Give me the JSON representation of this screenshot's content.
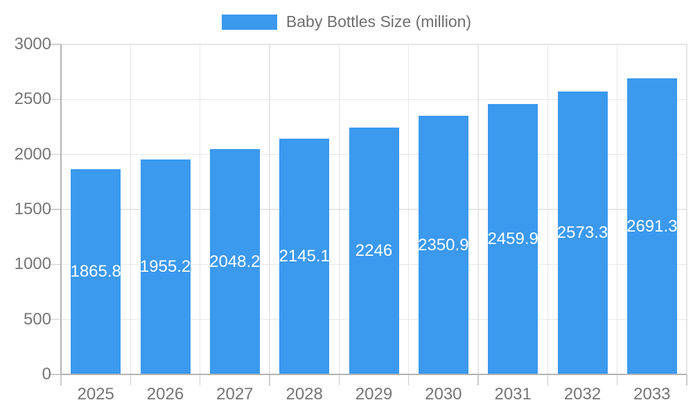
{
  "legend": {
    "label": "Baby Bottles Size (million)"
  },
  "chart_data": {
    "type": "bar",
    "title": "",
    "legend_label": "Baby Bottles Size (million)",
    "legend_position": "top",
    "categories": [
      "2025",
      "2026",
      "2027",
      "2028",
      "2029",
      "2030",
      "2031",
      "2032",
      "2033"
    ],
    "series": [
      {
        "name": "Baby Bottles Size (million)",
        "values": [
          1865.8,
          1955.2,
          2048.2,
          2145.1,
          2246,
          2350.9,
          2459.9,
          2573.3,
          2691.3
        ]
      }
    ],
    "xlabel": "",
    "ylabel": "",
    "ylim": [
      0,
      3000
    ],
    "y_ticks": [
      0,
      500,
      1000,
      1500,
      2000,
      2500,
      3000
    ],
    "grid": true,
    "colors": {
      "bar": "#3B99EE",
      "axis_text": "#757575",
      "legend_text": "#6f6f6f",
      "gridline": "#e6e6e6",
      "axis_line": "#b3b3b3",
      "tick": "#cccccc",
      "value_label": "#ffffff",
      "background": "#ffffff"
    }
  }
}
